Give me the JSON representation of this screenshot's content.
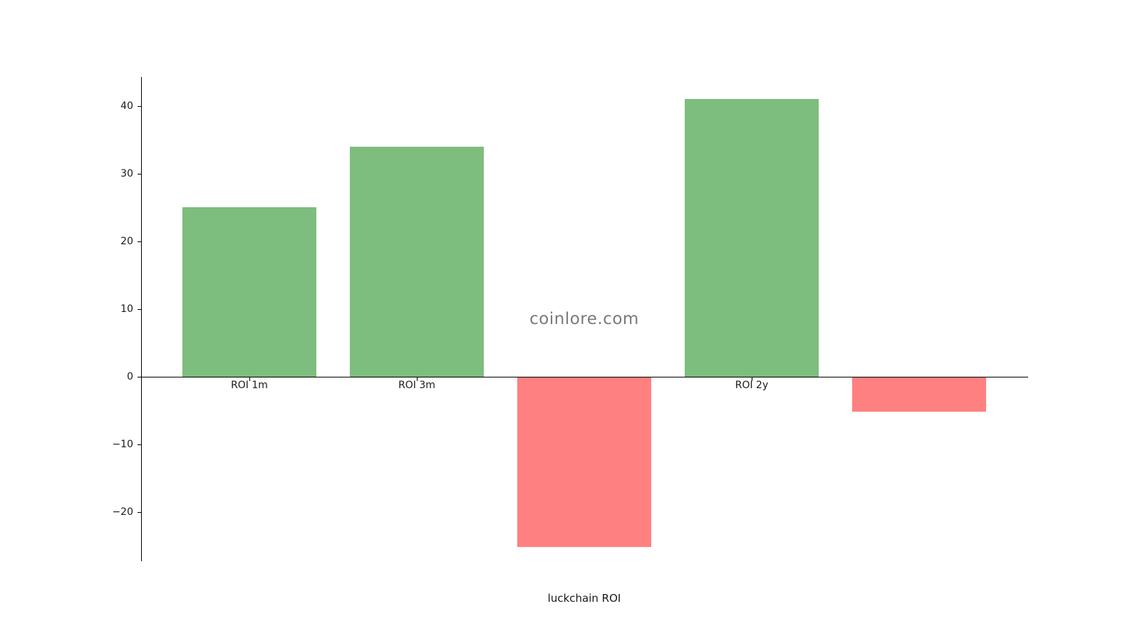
{
  "page": {
    "background": "#ffffff"
  },
  "watermark": {
    "text": "coinlore.com",
    "color": "#7a7a7a"
  },
  "chart_data": {
    "type": "bar",
    "title": "",
    "xlabel": "luckchain ROI",
    "ylabel": "",
    "categories": [
      "ROI 1m",
      "ROI 3m",
      "",
      "ROI 2y",
      ""
    ],
    "values": [
      25,
      34,
      -25,
      41,
      -5
    ],
    "bar_colors": [
      "#7dbd7d",
      "#7dbd7d",
      "#ff8080",
      "#7dbd7d",
      "#ff8080"
    ],
    "positive_color": "#7dbd7d",
    "negative_color": "#ff8080",
    "axis_color": "#000000",
    "y_tick_values": [
      40,
      30,
      20,
      10,
      0,
      -10,
      -20
    ],
    "y_tick_labels": [
      "40",
      "30",
      "20",
      "10",
      "0",
      "−10",
      "−20"
    ],
    "ylim": [
      -28.3,
      44.3
    ],
    "grid": false,
    "legend_position": "none",
    "notes": "labels of negative bars are hidden behind the bars, which are drawn over the zero-line tick labels"
  }
}
